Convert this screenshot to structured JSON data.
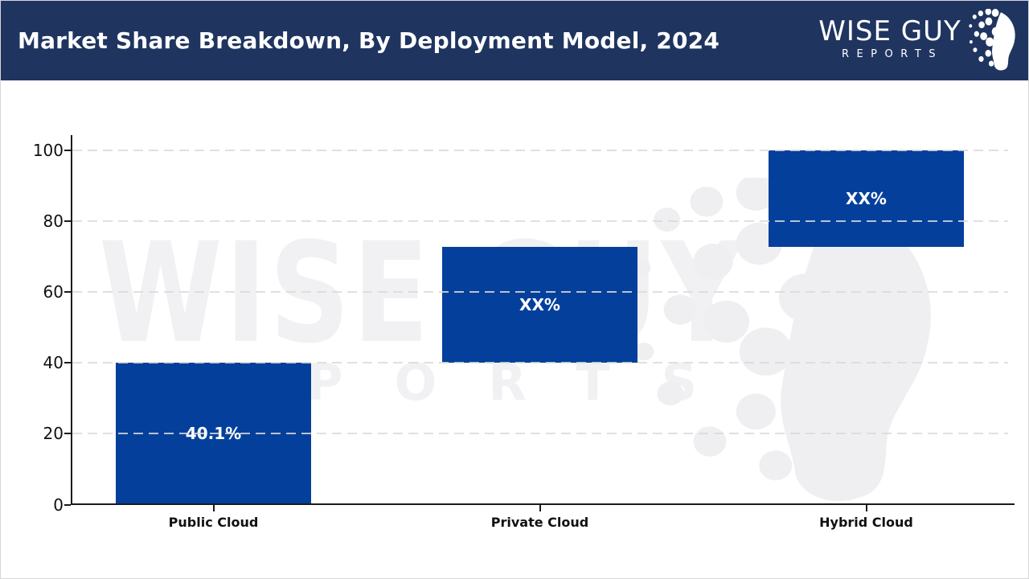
{
  "header": {
    "title": "Market Share Breakdown, By Deployment Model, 2024",
    "logo": {
      "line1": "WISE GUY",
      "line2": "REPORTS"
    }
  },
  "watermark": {
    "line1": "WISE GUY",
    "line2": "REPORTS"
  },
  "chart_data": {
    "type": "bar",
    "subtype": "floating-segment-waterfall",
    "title": "Market Share Breakdown, By Deployment Model, 2024",
    "categories": [
      "Public Cloud",
      "Private Cloud",
      "Hybrid Cloud"
    ],
    "segments": [
      {
        "category": "Public Cloud",
        "start": 0,
        "end": 40.1,
        "label": "40.1%"
      },
      {
        "category": "Private Cloud",
        "start": 40.1,
        "end": 72.6,
        "label": "XX%"
      },
      {
        "category": "Hybrid Cloud",
        "start": 72.6,
        "end": 100,
        "label": "XX%"
      }
    ],
    "ylim": [
      0,
      100
    ],
    "yticks": [
      0,
      20,
      40,
      60,
      80,
      100
    ],
    "xlabel": "",
    "ylabel": "",
    "grid": {
      "axis": "y",
      "style": "dashed",
      "color": "#dadada",
      "drawn_over_bars": true
    },
    "bar_color": "#04409b",
    "bar_label_color": "#ffffff",
    "axis_color": "#1a1a1a",
    "header_bg": "#1f3560",
    "legend": null
  }
}
